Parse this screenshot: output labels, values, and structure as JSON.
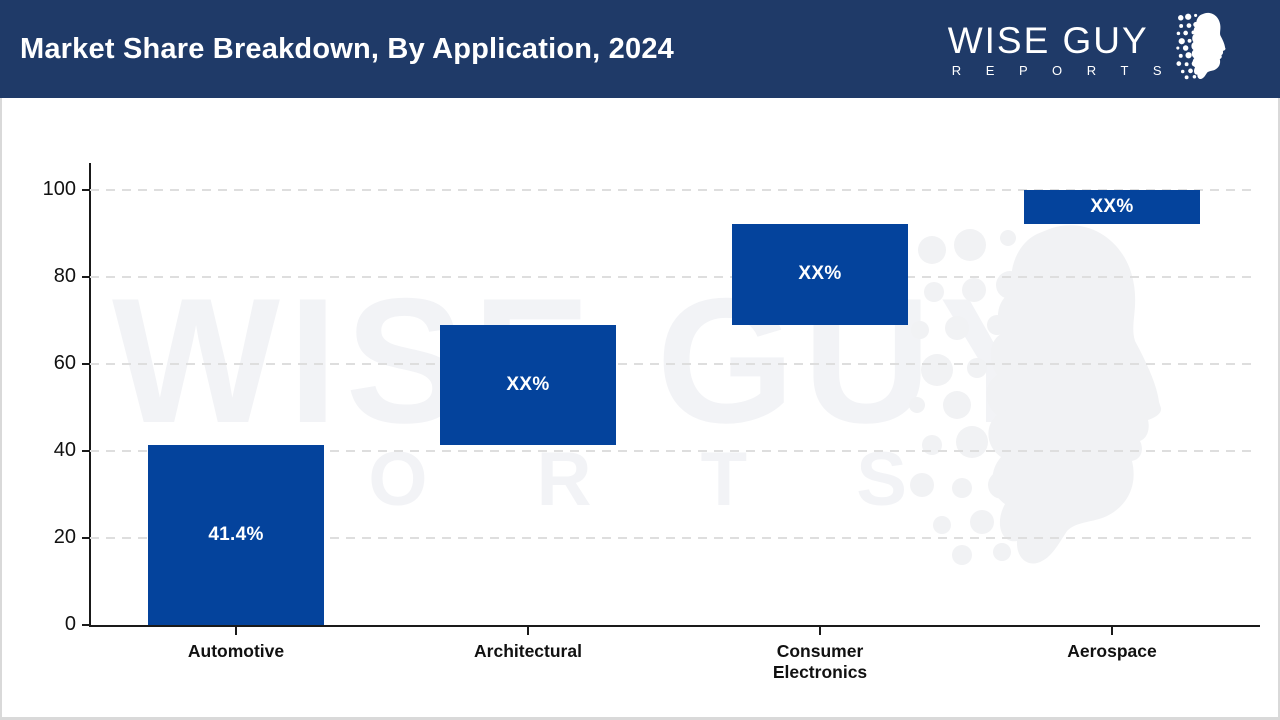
{
  "header": {
    "title": "Market Share Breakdown, By Application, 2024",
    "logo": {
      "brand_line1": "WISE GUY",
      "brand_line2": "R E P O R T S",
      "icon": "dotted-head-profile"
    }
  },
  "watermark": {
    "line1": "WISE GUY",
    "line2": "P O R T S",
    "icon": "dotted-head-profile"
  },
  "chart_data": {
    "type": "bar",
    "variant": "floating-waterfall",
    "title": "Market Share Breakdown, By Application, 2024",
    "categories": [
      "Automotive",
      "Architectural",
      "Consumer Electronics",
      "Aerospace"
    ],
    "bars": [
      {
        "category": "Automotive",
        "start": 0,
        "end": 41.4,
        "label": "41.4%"
      },
      {
        "category": "Architectural",
        "start": 41.4,
        "end": 69,
        "label": "XX%"
      },
      {
        "category": "Consumer Electronics",
        "start": 69,
        "end": 92.2,
        "label": "XX%"
      },
      {
        "category": "Aerospace",
        "start": 92.2,
        "end": 100,
        "label": "XX%"
      }
    ],
    "yticks": [
      0,
      20,
      40,
      60,
      80,
      100
    ],
    "ylim": [
      0,
      105
    ],
    "xlabel": "",
    "ylabel": "",
    "legend": "none",
    "grid": {
      "horizontal": true,
      "style": "dashed"
    }
  },
  "colors": {
    "header_bg": "#1f3a68",
    "bar": "#04439c",
    "axis": "#1a1a1a",
    "grid": "#dedede",
    "watermark": "#f2f3f6",
    "border": "#d9d9d9"
  }
}
